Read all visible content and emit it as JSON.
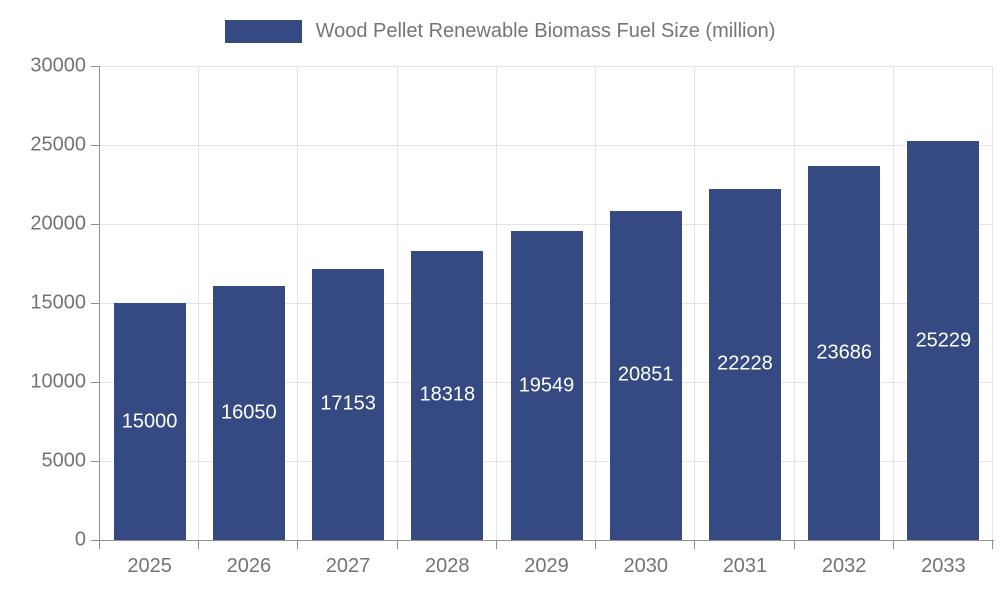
{
  "legend": {
    "label": "Wood Pellet Renewable Biomass Fuel Size (million)"
  },
  "chart_data": {
    "type": "bar",
    "title": "Wood Pellet Renewable Biomass Fuel Size (million)",
    "categories": [
      "2025",
      "2026",
      "2027",
      "2028",
      "2029",
      "2030",
      "2031",
      "2032",
      "2033"
    ],
    "values": [
      15000,
      16050,
      17153,
      18318,
      19549,
      20851,
      22228,
      23686,
      25229
    ],
    "xlabel": "",
    "ylabel": "",
    "ylim": [
      0,
      30000
    ],
    "yticks": [
      0,
      5000,
      10000,
      15000,
      20000,
      25000,
      30000
    ],
    "grid": true,
    "legend_position": "top",
    "value_labels": "inside-center-white"
  },
  "colors": {
    "bar": "#354a82",
    "grid": "#e3e3e6",
    "axis": "#8f8f94",
    "tick_label": "#737373",
    "legend_text": "#757575",
    "value_label": "#ffffff",
    "background": "#ffffff"
  }
}
